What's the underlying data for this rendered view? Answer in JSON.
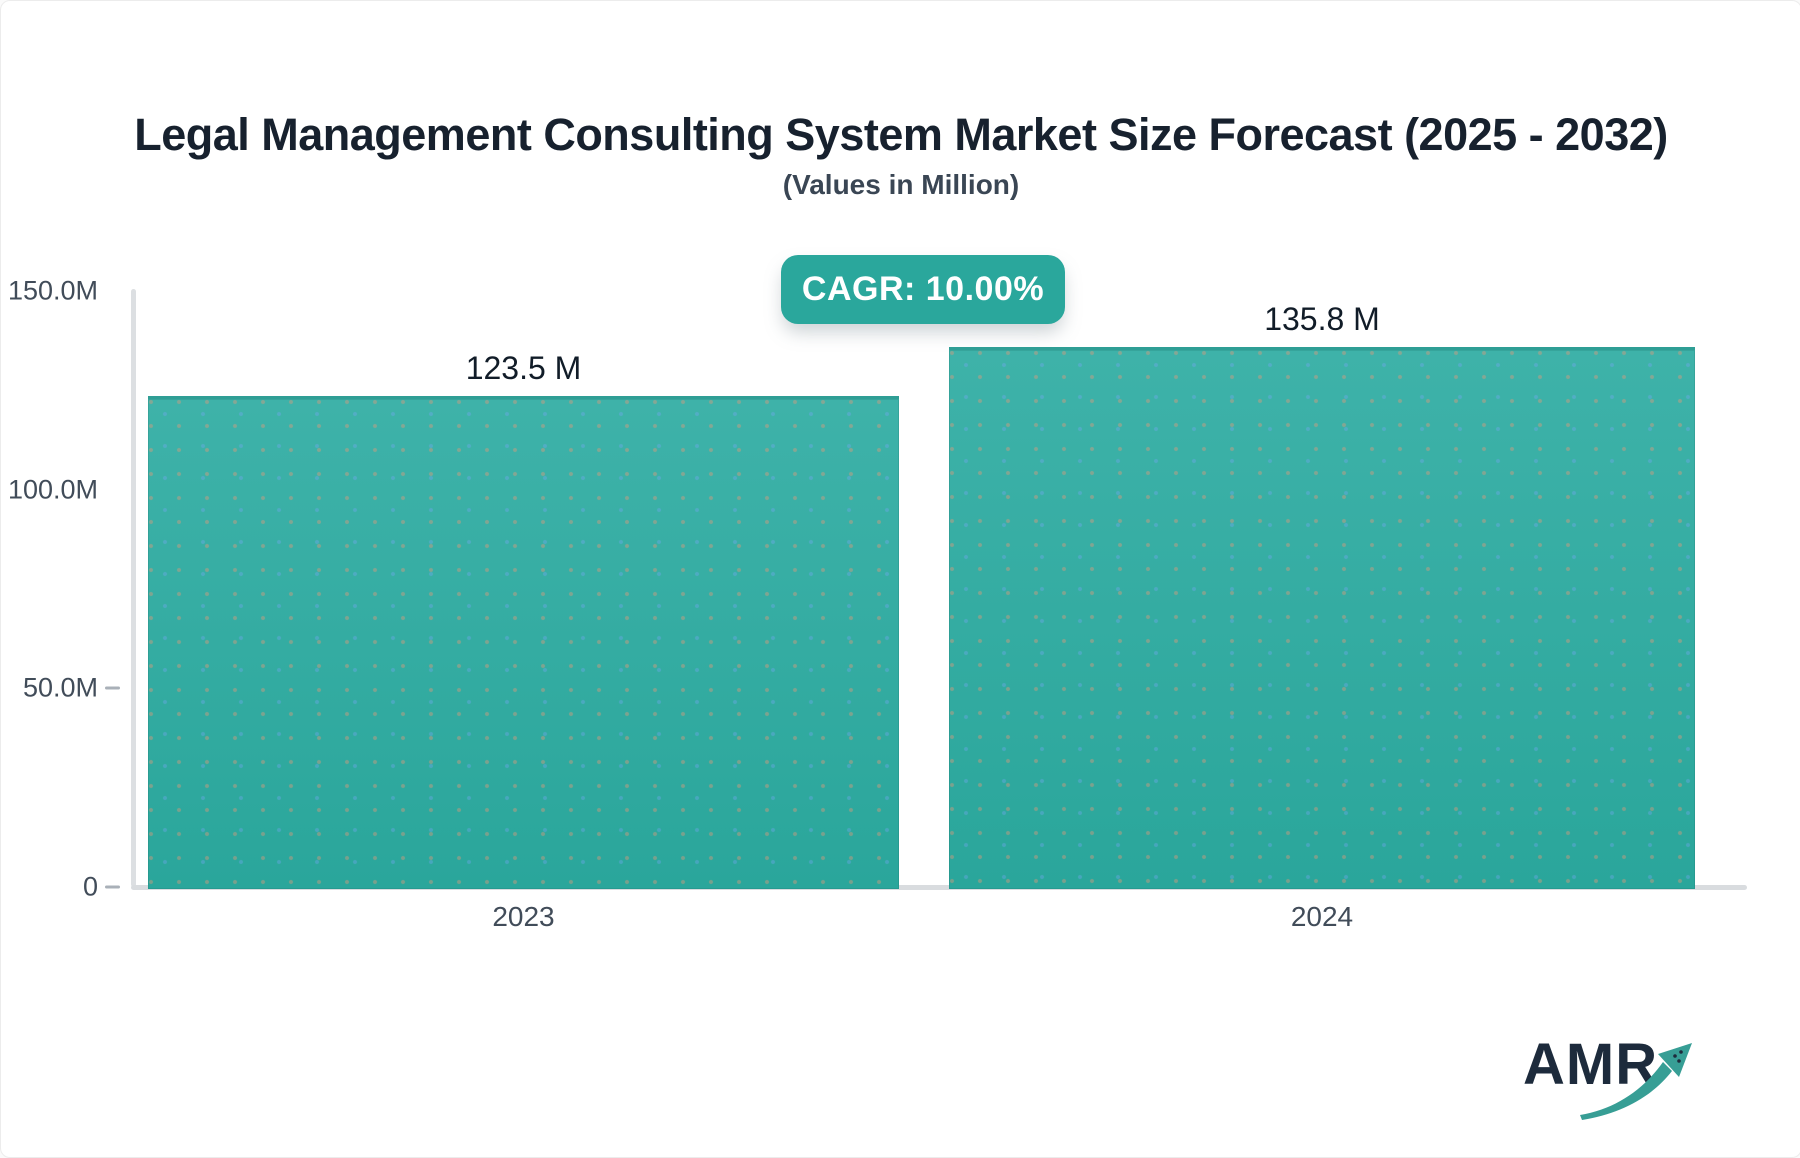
{
  "chart_data": {
    "type": "bar",
    "title": "Legal Management Consulting System Market Size Forecast (2025 - 2032)",
    "subtitle": "(Values in Million)",
    "annotation": "CAGR: 10.00%",
    "units": "Million",
    "categories": [
      "2023",
      "2024"
    ],
    "values": [
      123.5,
      135.8
    ],
    "value_labels": [
      "123.5 M",
      "135.8 M"
    ],
    "xlabel": "",
    "ylabel": "",
    "ylim": [
      0,
      150
    ],
    "grid": false,
    "legend": false,
    "yticks": [
      {
        "label": "150.0M",
        "value": 150,
        "dash": false
      },
      {
        "label": "100.0M",
        "value": 100,
        "dash": false
      },
      {
        "label": "50.0M",
        "value": 50,
        "dash": true
      },
      {
        "label": "0",
        "value": 0,
        "dash": true
      }
    ]
  },
  "logo": {
    "text": "AMR"
  },
  "colors": {
    "accent_teal": "#2aa79c",
    "bar_top": "#3eb2a9",
    "bar_bottom": "#2aa69b",
    "bar_edge": "#2f9e95",
    "axis_gray": "#d9dcdf",
    "title_text": "#17212e",
    "label_text": "#414c59",
    "logo_navy": "#1d2b3c"
  }
}
